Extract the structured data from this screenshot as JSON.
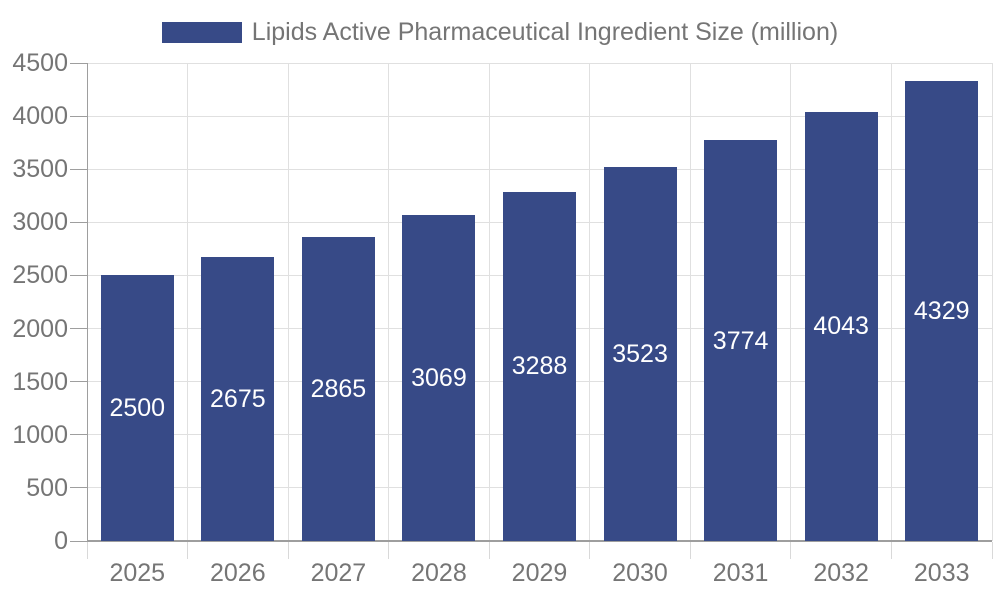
{
  "chart_data": {
    "type": "bar",
    "title": "Lipids Active Pharmaceutical Ingredient Size (million)",
    "categories": [
      "2025",
      "2026",
      "2027",
      "2028",
      "2029",
      "2030",
      "2031",
      "2032",
      "2033"
    ],
    "series": [
      {
        "name": "Lipids Active Pharmaceutical Ingredient Size (million)",
        "values": [
          2500,
          2675,
          2865,
          3069,
          3288,
          3523,
          3774,
          4043,
          4329
        ]
      }
    ],
    "xlabel": "",
    "ylabel": "",
    "ylim": [
      0,
      4500
    ],
    "ytick_step": 500,
    "ytick_labels": [
      "0",
      "500",
      "1000",
      "1500",
      "2000",
      "2500",
      "3000",
      "3500",
      "4000",
      "4500"
    ],
    "grid": true,
    "legend_position": "top",
    "value_label_position": "inside-center",
    "colors": {
      "bar": "#374a87",
      "grid": "#e0e0e0",
      "axis": "#9e9e9e",
      "tick_text": "#757575",
      "legend_text": "#757575",
      "value_label": "#ffffff",
      "background": "#ffffff"
    }
  }
}
